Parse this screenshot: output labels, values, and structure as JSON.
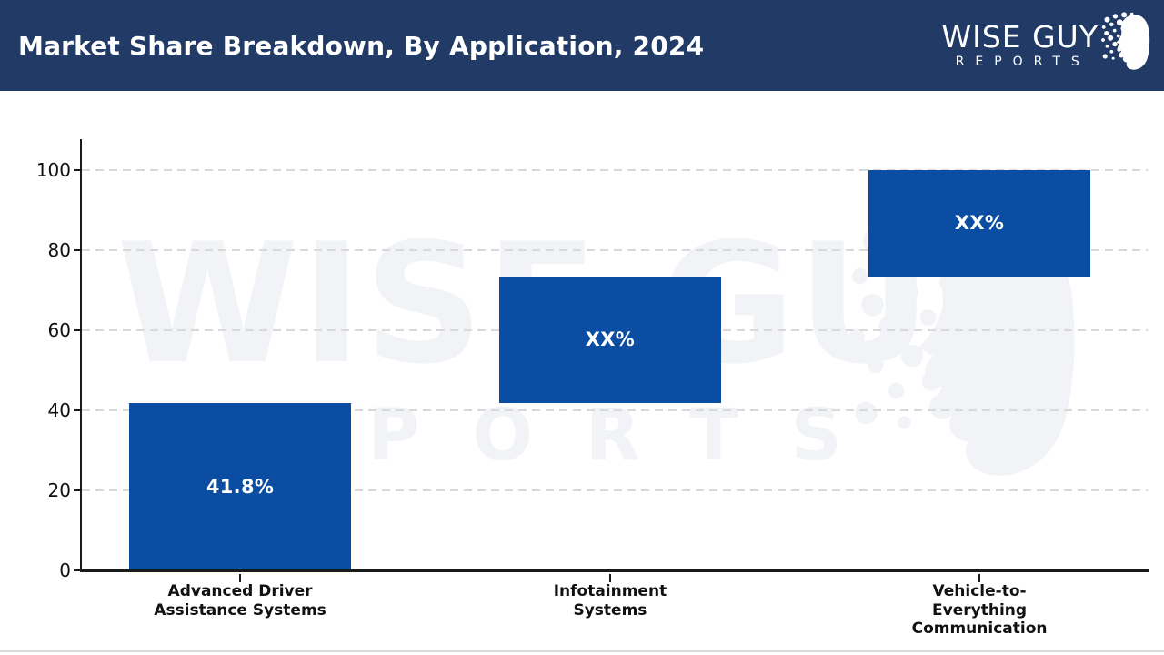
{
  "header": {
    "title": "Market Share Breakdown, By Application, 2024"
  },
  "brand": {
    "name": "WISE GUY",
    "sub": "REPORTS"
  },
  "colors": {
    "header_bg": "#213A66",
    "bar": "#0B4DA2",
    "bar_label": "#FFFFFF",
    "axis": "#1A1A1A",
    "gridline": "#D9D9D9",
    "watermark": "#F2F3F6"
  },
  "chart_data": {
    "type": "bar",
    "subtype": "waterfall",
    "title": "Market Share Breakdown, By Application, 2024",
    "xlabel": "",
    "ylabel": "",
    "categories": [
      "Advanced Driver\nAssistance Systems",
      "Infotainment\nSystems",
      "Vehicle-to-\nEverything\nCommunication"
    ],
    "segments": [
      {
        "category": "Advanced Driver Assistance Systems",
        "start": 0,
        "end": 41.8,
        "value": 41.8,
        "label": "41.8%"
      },
      {
        "category": "Infotainment Systems",
        "start": 41.8,
        "end": 73.5,
        "value": 31.7,
        "label": "XX%"
      },
      {
        "category": "Vehicle-to-Everything Communication",
        "start": 73.5,
        "end": 100,
        "value": 26.5,
        "label": "XX%"
      }
    ],
    "yticks": [
      0,
      20,
      40,
      60,
      80,
      100
    ],
    "ylim": [
      0,
      107.3
    ],
    "grid": "horizontal-dashed",
    "legend": "none"
  }
}
